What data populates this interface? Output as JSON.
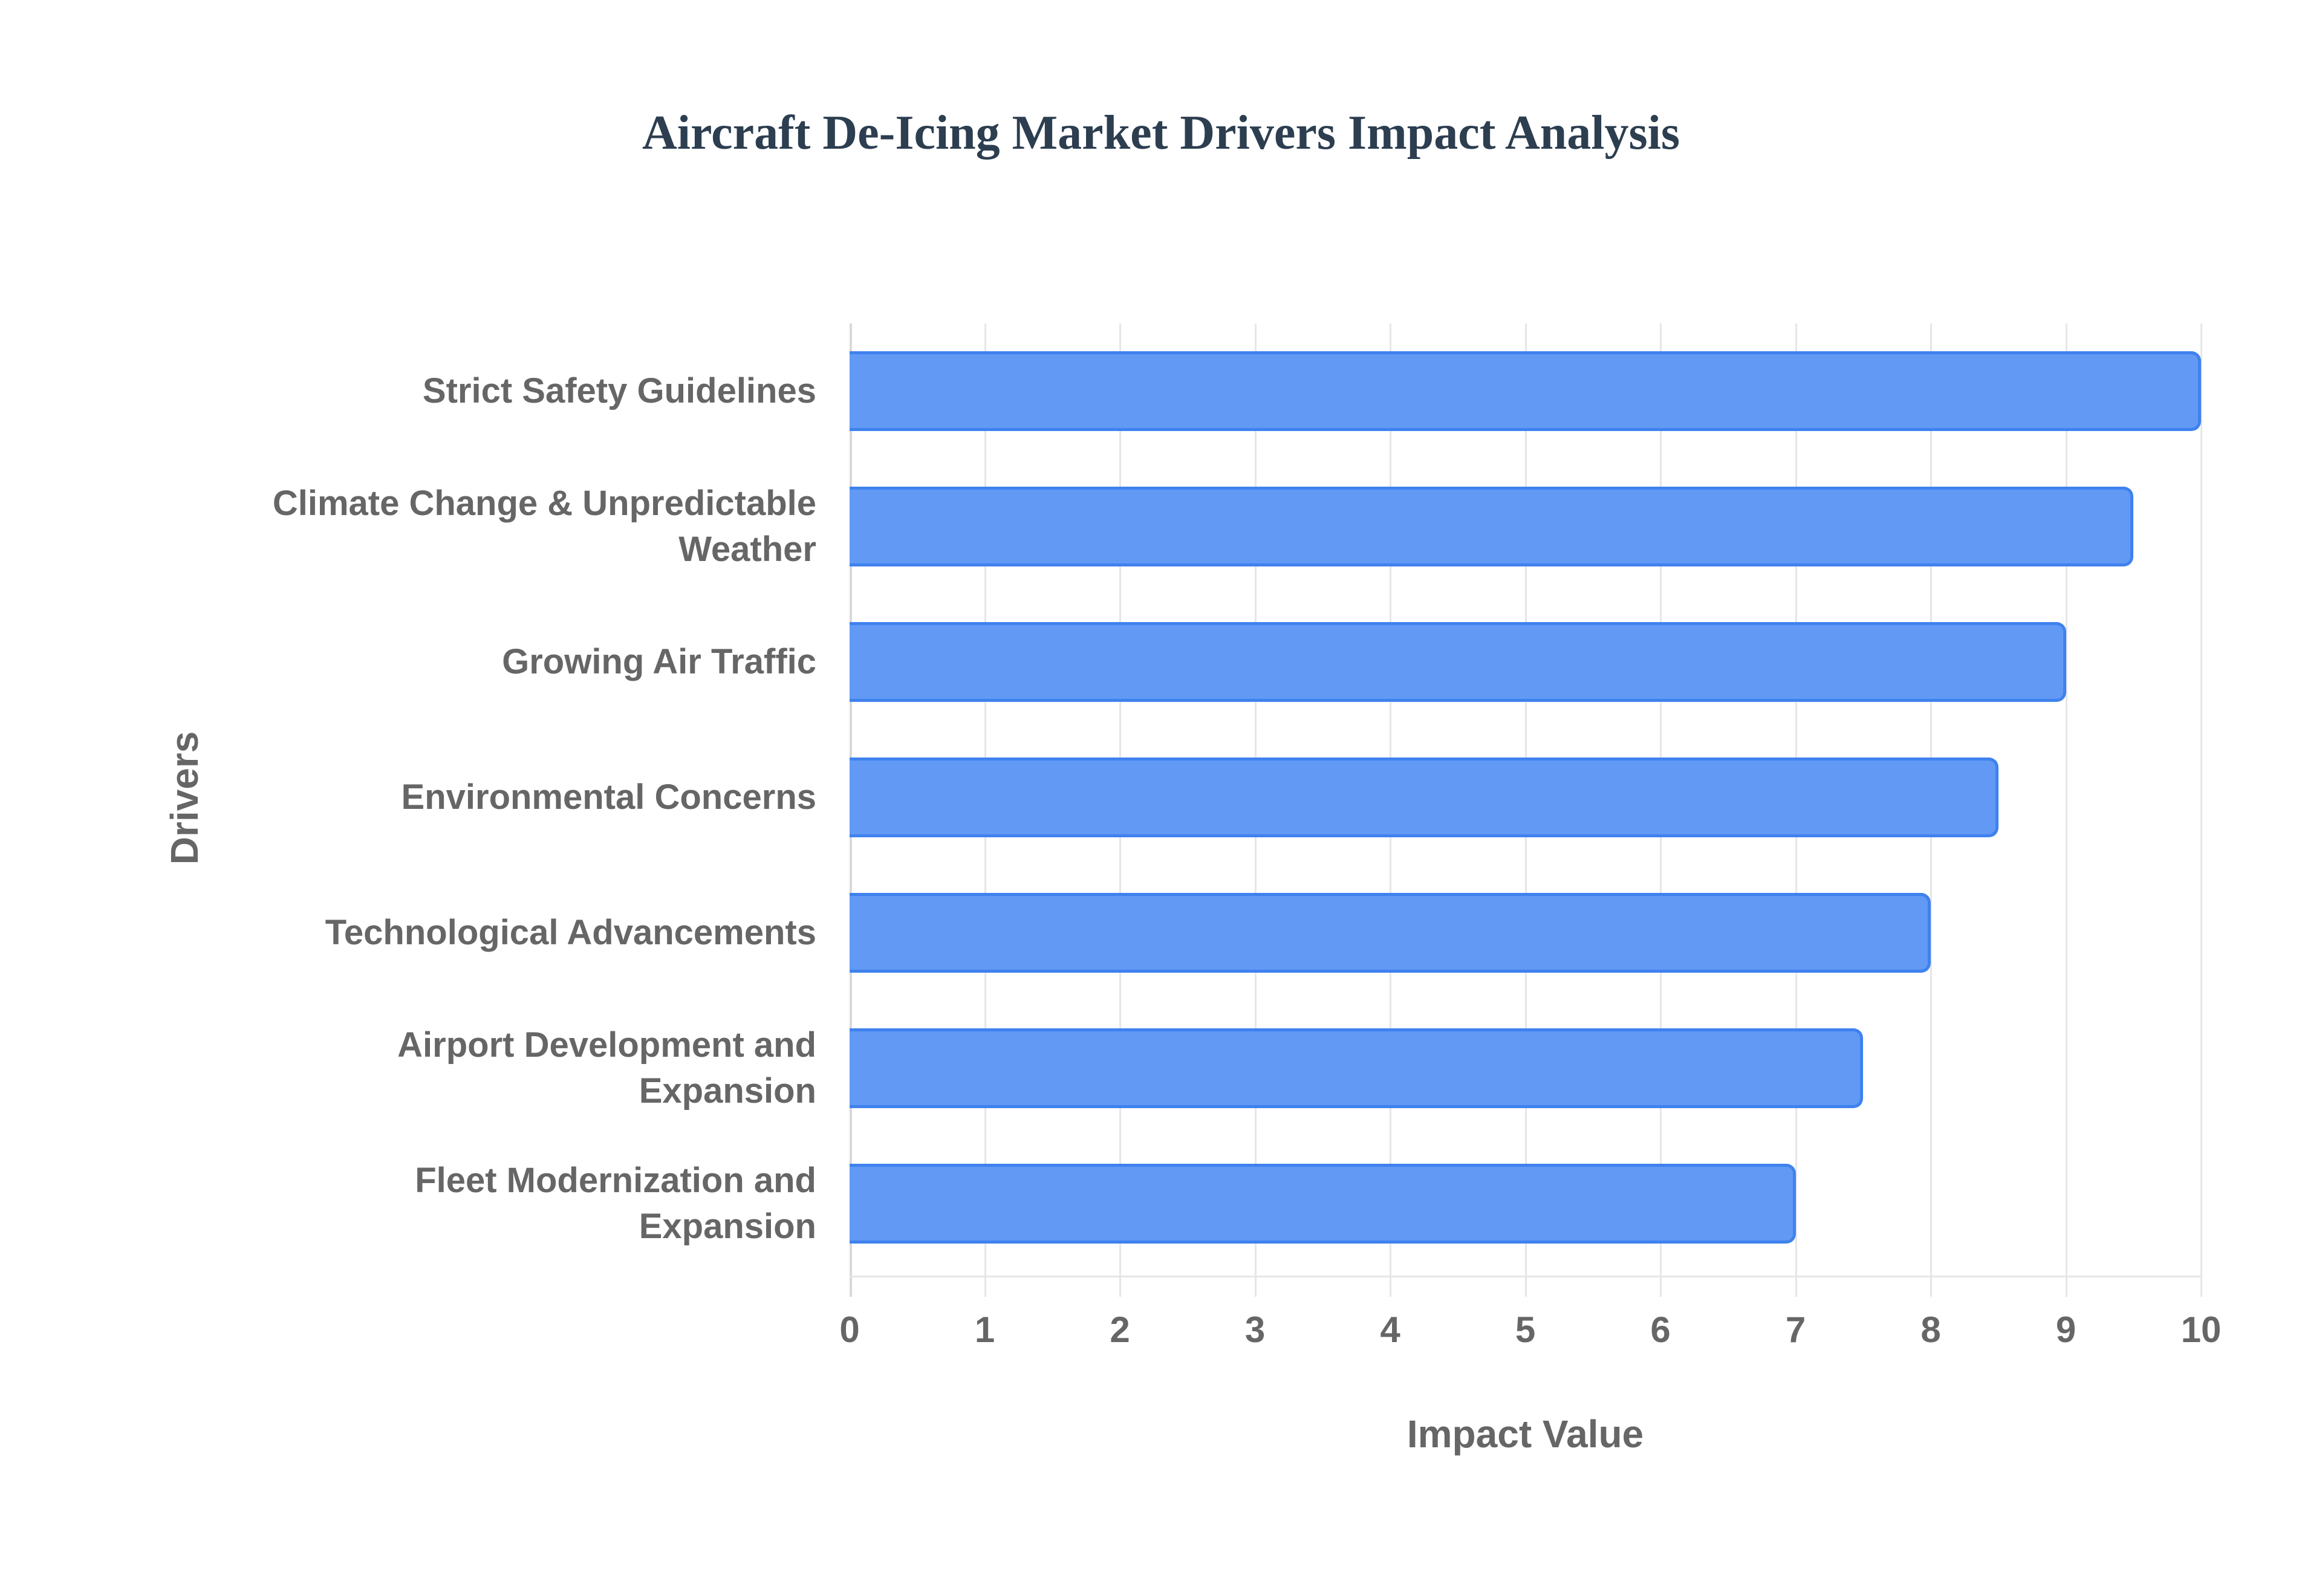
{
  "chart_data": {
    "type": "bar",
    "orientation": "horizontal",
    "title": "Aircraft De-Icing Market Drivers Impact Analysis",
    "xlabel": "Impact Value",
    "ylabel": "Drivers",
    "xlim": [
      0,
      10
    ],
    "x_ticks": [
      "0",
      "1",
      "2",
      "3",
      "4",
      "5",
      "6",
      "7",
      "8",
      "9",
      "10"
    ],
    "grid": true,
    "legend": null,
    "categories": [
      "Strict Safety Guidelines",
      "Climate Change & Unpredictable Weather",
      "Growing Air Traffic",
      "Environmental Concerns",
      "Technological Advancements",
      "Airport Development and Expansion",
      "Fleet Modernization and Expansion"
    ],
    "values": [
      10,
      9.5,
      9,
      8.5,
      8,
      7.5,
      7
    ],
    "colors": {
      "bar_fill": "#6199f5",
      "bar_border": "#3f82ee",
      "title": "#2c3e50",
      "text": "#666666",
      "grid": "#e6e6e6"
    }
  },
  "labels": {
    "title": "Aircraft De-Icing Market Drivers Impact Analysis",
    "xlabel": "Impact Value",
    "ylabel": "Drivers",
    "categories": [
      [
        "Strict Safety Guidelines"
      ],
      [
        "Climate Change & Unpredictable",
        "Weather"
      ],
      [
        "Growing Air Traffic"
      ],
      [
        "Environmental Concerns"
      ],
      [
        "Technological Advancements"
      ],
      [
        "Airport Development and",
        "Expansion"
      ],
      [
        "Fleet Modernization and",
        "Expansion"
      ]
    ]
  }
}
